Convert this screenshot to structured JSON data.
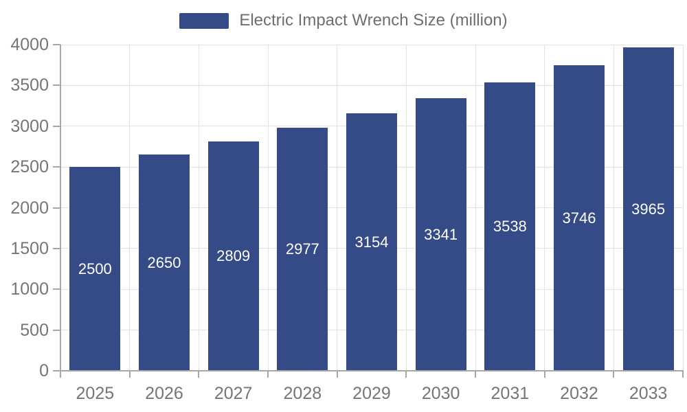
{
  "legend": {
    "label": "Electric Impact Wrench Size (million)"
  },
  "colors": {
    "bar": "#354B87",
    "grid": "#e2e2e2",
    "axis": "#a6a6a6",
    "tick_label": "#757575",
    "legend_text": "#6e6e6e",
    "bar_label": "#ffffff",
    "background": "#ffffff"
  },
  "chart_data": {
    "type": "bar",
    "title": "",
    "xlabel": "",
    "ylabel": "",
    "categories": [
      "2025",
      "2026",
      "2027",
      "2028",
      "2029",
      "2030",
      "2031",
      "2032",
      "2033"
    ],
    "series": [
      {
        "name": "Electric Impact Wrench Size (million)",
        "values": [
          2500,
          2650,
          2809,
          2977,
          3154,
          3341,
          3538,
          3746,
          3965
        ],
        "color": "#354B87"
      }
    ],
    "bar_labels_visible": true,
    "bar_label_position": "center",
    "ylim": [
      0,
      4000
    ],
    "ytick_step": 500,
    "ytick_labels": [
      "0",
      "500",
      "1000",
      "1500",
      "2000",
      "2500",
      "3000",
      "3500",
      "4000"
    ],
    "grid": true,
    "legend_position": "top-center"
  }
}
